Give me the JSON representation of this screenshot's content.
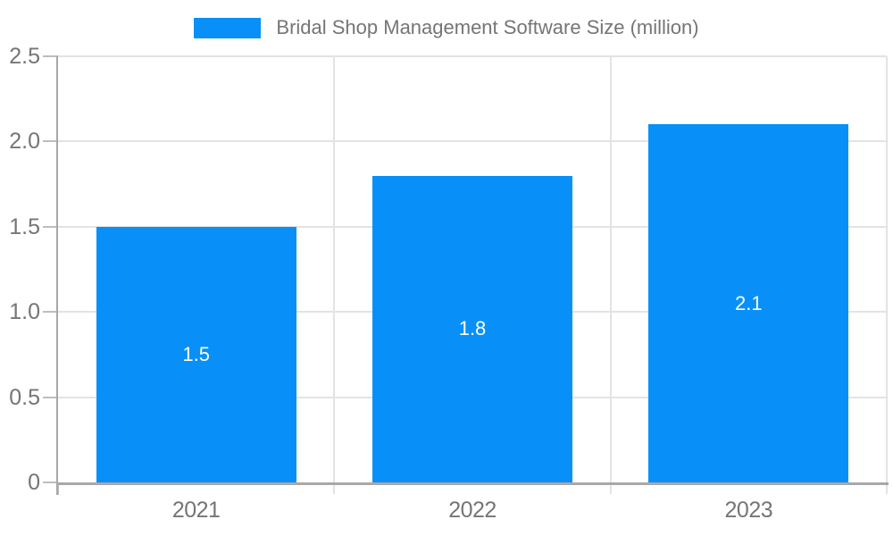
{
  "chart_data": {
    "type": "bar",
    "title": "Bridal Shop Management Software Size (million)",
    "categories": [
      "2021",
      "2022",
      "2023"
    ],
    "values": [
      1.5,
      1.8,
      2.1
    ],
    "bar_labels": [
      "1.5",
      "1.8",
      "2.1"
    ],
    "ylabel": "",
    "xlabel": "",
    "ylim": [
      0,
      2.5
    ],
    "yticks": [
      {
        "value": 0,
        "label": "0"
      },
      {
        "value": 0.5,
        "label": "0.5"
      },
      {
        "value": 1,
        "label": "1.0"
      },
      {
        "value": 1.5,
        "label": "1.5"
      },
      {
        "value": 2,
        "label": "2.0"
      },
      {
        "value": 2.5,
        "label": "2.5"
      }
    ],
    "grid": true,
    "legend_position": "top-center",
    "colors": {
      "bar": "#0890f8",
      "bar_label": "#ffffff",
      "axis_text": "#757575",
      "grid_line": "#e3e3e3",
      "axis_line": "#a8a8a8",
      "tick_mark": "#bdbdbd"
    }
  }
}
